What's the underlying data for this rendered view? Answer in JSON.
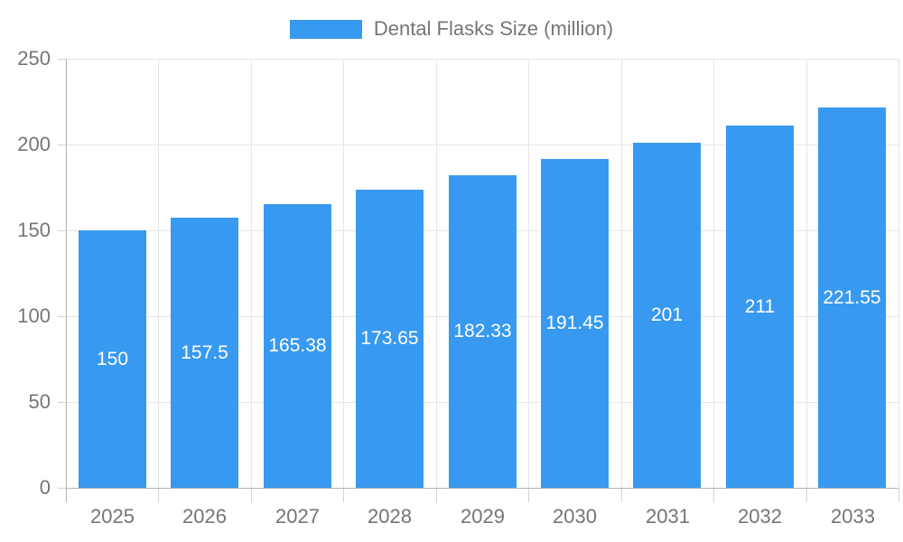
{
  "chart_data": {
    "type": "bar",
    "title": "Dental Flasks Size (million)",
    "categories": [
      "2025",
      "2026",
      "2027",
      "2028",
      "2029",
      "2030",
      "2031",
      "2032",
      "2033"
    ],
    "values": [
      150,
      157.5,
      165.38,
      173.65,
      182.33,
      191.45,
      201,
      211,
      221.55
    ],
    "xlabel": "",
    "ylabel": "",
    "ylim": [
      0,
      250
    ],
    "y_ticks": [
      0,
      50,
      100,
      150,
      200,
      250
    ],
    "grid": true,
    "legend_position": "top-center",
    "colors": {
      "bar": "#3899F0",
      "bar_value_label": "#FFFFFF",
      "axis_label": "#757575",
      "legend_label": "#757575",
      "gridline": "#E6E6E6",
      "axis_line": "#B3B3B3",
      "tick": "#D2D2D2",
      "background": "#FFFFFF"
    }
  }
}
